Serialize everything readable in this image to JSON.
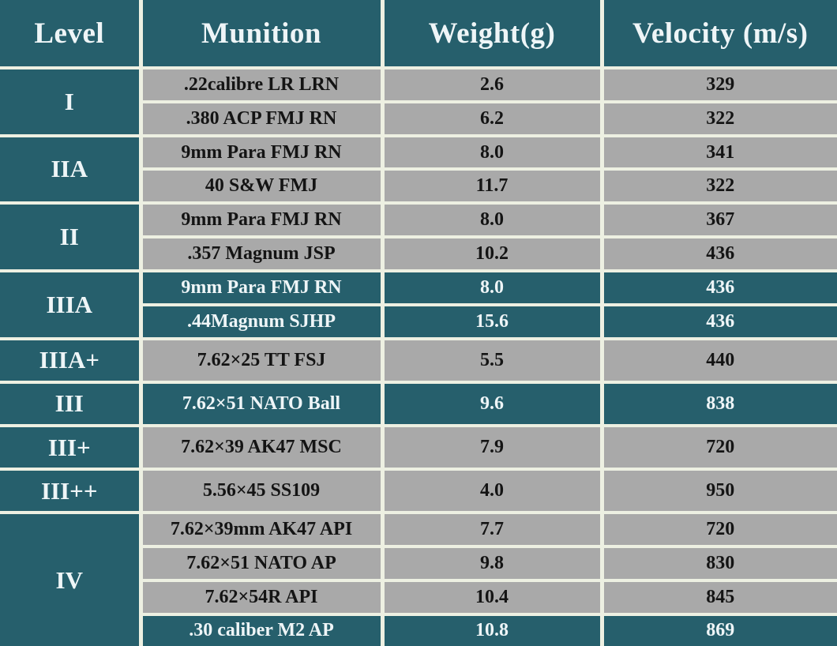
{
  "chart_data": {
    "type": "table",
    "columns": [
      "Level",
      "Munition",
      "Weight(g)",
      "Velocity (m/s)"
    ],
    "groups": [
      {
        "level": "I",
        "rows": [
          {
            "munition": ".22calibre LR LRN",
            "weight": "2.6",
            "velocity": "329",
            "highlight": false
          },
          {
            "munition": ".380 ACP FMJ RN",
            "weight": "6.2",
            "velocity": "322",
            "highlight": false
          }
        ]
      },
      {
        "level": "IIA",
        "rows": [
          {
            "munition": "9mm Para FMJ RN",
            "weight": "8.0",
            "velocity": "341",
            "highlight": false
          },
          {
            "munition": "40 S&W FMJ",
            "weight": "11.7",
            "velocity": "322",
            "highlight": false
          }
        ]
      },
      {
        "level": "II",
        "rows": [
          {
            "munition": "9mm Para FMJ RN",
            "weight": "8.0",
            "velocity": "367",
            "highlight": false
          },
          {
            "munition": ".357 Magnum JSP",
            "weight": "10.2",
            "velocity": "436",
            "highlight": false
          }
        ]
      },
      {
        "level": "IIIA",
        "rows": [
          {
            "munition": "9mm Para FMJ RN",
            "weight": "8.0",
            "velocity": "436",
            "highlight": true
          },
          {
            "munition": ".44Magnum SJHP",
            "weight": "15.6",
            "velocity": "436",
            "highlight": true
          }
        ]
      },
      {
        "level": "IIIA+",
        "rows": [
          {
            "munition": "7.62×25 TT FSJ",
            "weight": "5.5",
            "velocity": "440",
            "highlight": false
          }
        ]
      },
      {
        "level": "III",
        "rows": [
          {
            "munition": "7.62×51 NATO Ball",
            "weight": "9.6",
            "velocity": "838",
            "highlight": true
          }
        ]
      },
      {
        "level": "III+",
        "rows": [
          {
            "munition": "7.62×39 AK47 MSC",
            "weight": "7.9",
            "velocity": "720",
            "highlight": false
          }
        ]
      },
      {
        "level": "III++",
        "rows": [
          {
            "munition": "5.56×45 SS109",
            "weight": "4.0",
            "velocity": "950",
            "highlight": false
          }
        ]
      },
      {
        "level": "IV",
        "rows": [
          {
            "munition": "7.62×39mm AK47 API",
            "weight": "7.7",
            "velocity": "720",
            "highlight": false
          },
          {
            "munition": "7.62×51 NATO AP",
            "weight": "9.8",
            "velocity": "830",
            "highlight": false
          },
          {
            "munition": "7.62×54R API",
            "weight": "10.4",
            "velocity": "845",
            "highlight": false
          },
          {
            "munition": ".30 caliber M2 AP",
            "weight": "10.8",
            "velocity": "869",
            "highlight": true
          }
        ]
      }
    ]
  },
  "colors": {
    "teal": "#265f6c",
    "gray": "#a9a9a9",
    "grid": "#edf0e2",
    "text-dark": "#141414",
    "text-light": "#eef5f7"
  }
}
